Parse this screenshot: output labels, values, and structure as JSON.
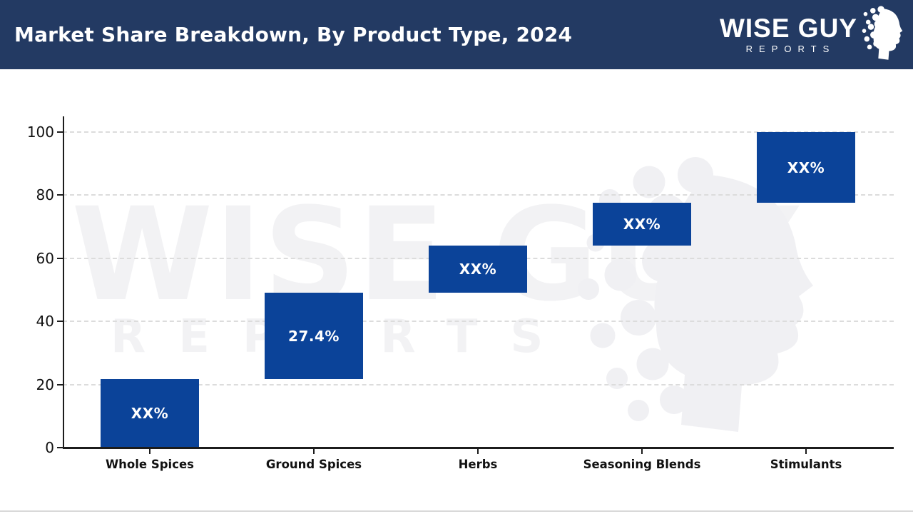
{
  "header": {
    "title": "Market Share Breakdown, By Product Type, 2024",
    "logo": {
      "line1": "WISE GUY",
      "line2": "REPORTS"
    }
  },
  "watermark": {
    "line1": "WISE GUY",
    "line2": "REPORTS"
  },
  "colors": {
    "header_bg": "#233a63",
    "bar": "#0b4399",
    "bar_label_text": "#ffffff",
    "grid": "#dcdcdc",
    "axis": "#1c1c1c",
    "watermark": "#f2f2f4"
  },
  "chart_data": {
    "type": "bar",
    "subtype": "waterfall",
    "title": "Market Share Breakdown, By Product Type, 2024",
    "xlabel": "",
    "ylabel": "",
    "ylim": [
      0,
      105
    ],
    "yticks": [
      0,
      20,
      40,
      60,
      80,
      100
    ],
    "grid": "horizontal dashed",
    "legend": "none",
    "categories": [
      "Whole Spices",
      "Ground Spices",
      "Herbs",
      "Seasoning Blends",
      "Stimulants"
    ],
    "segments": [
      {
        "category": "Whole Spices",
        "start": 0,
        "end": 21.7,
        "label": "XX%"
      },
      {
        "category": "Ground Spices",
        "start": 21.7,
        "end": 49.1,
        "label": "27.4%"
      },
      {
        "category": "Herbs",
        "start": 49.1,
        "end": 64.1,
        "label": "XX%"
      },
      {
        "category": "Seasoning Blends",
        "start": 64.1,
        "end": 77.6,
        "label": "XX%"
      },
      {
        "category": "Stimulants",
        "start": 77.6,
        "end": 100,
        "label": "XX%"
      }
    ]
  }
}
